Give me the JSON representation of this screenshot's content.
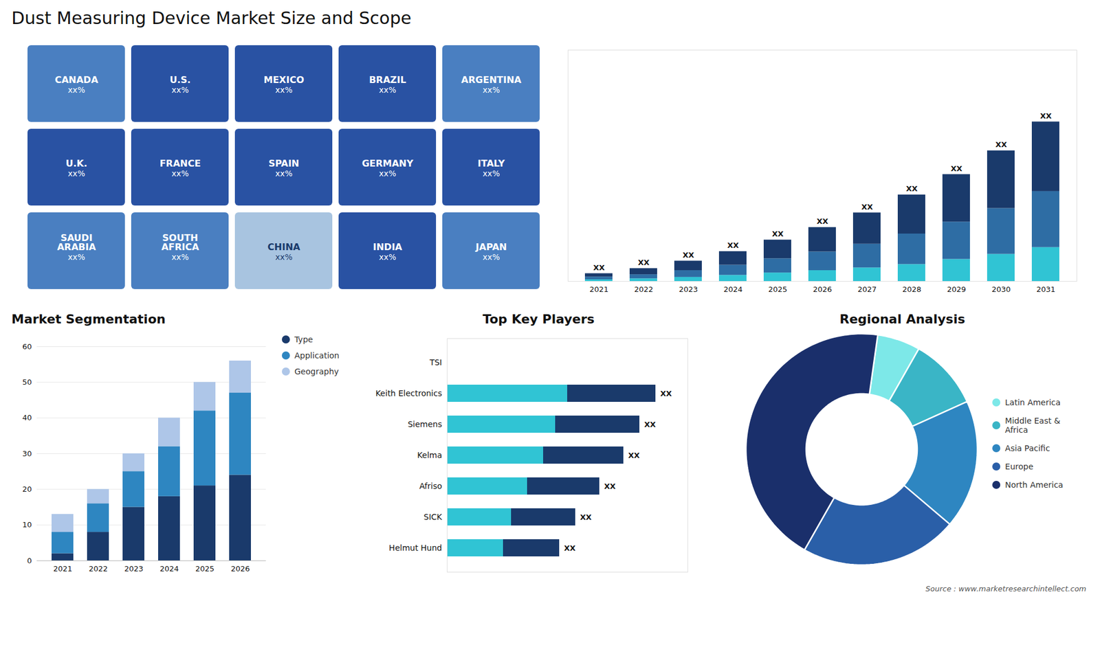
{
  "title": "Dust Measuring Device Market Size and Scope",
  "caption": "Source : www.marketresearchintellect.com",
  "chart_data": [
    {
      "type": "map",
      "annotations": [
        {
          "text": "CANADA",
          "label": "xx%",
          "color": "#4a7fc1"
        },
        {
          "text": "U.S.",
          "label": "xx%",
          "color": "#2952a3"
        },
        {
          "text": "MEXICO",
          "label": "xx%",
          "color": "#2952a3"
        },
        {
          "text": "BRAZIL",
          "label": "xx%",
          "color": "#2952a3"
        },
        {
          "text": "ARGENTINA",
          "label": "xx%",
          "color": "#4a7fc1"
        },
        {
          "text": "U.K.",
          "label": "xx%",
          "color": "#2952a3"
        },
        {
          "text": "FRANCE",
          "label": "xx%",
          "color": "#2952a3"
        },
        {
          "text": "SPAIN",
          "label": "xx%",
          "color": "#2952a3"
        },
        {
          "text": "GERMANY",
          "label": "xx%",
          "color": "#2952a3"
        },
        {
          "text": "ITALY",
          "label": "xx%",
          "color": "#2952a3"
        },
        {
          "text": "SAUDI\nARABIA",
          "label": "xx%",
          "color": "#4a7fc1"
        },
        {
          "text": "SOUTH\nAFRICA",
          "label": "xx%",
          "color": "#4a7fc1"
        },
        {
          "text": "CHINA",
          "label": "xx%",
          "color": "#a8c4e0"
        },
        {
          "text": "INDIA",
          "label": "xx%",
          "color": "#2952a3"
        },
        {
          "text": "JAPAN",
          "label": "xx%",
          "color": "#4a7fc1"
        }
      ]
    },
    {
      "type": "bar",
      "stacked": true,
      "categories": [
        2021,
        2022,
        2023,
        2024,
        2025,
        2026,
        2027,
        2028,
        2029,
        2030,
        2031
      ],
      "series": [
        {
          "color": "#30c4d4",
          "values": [
            0.5,
            0.8,
            1.2,
            1.8,
            2.5,
            3.2,
            4.0,
            5.0,
            6.5,
            8.0,
            10.0
          ]
        },
        {
          "color": "#2e6da4",
          "values": [
            0.8,
            1.2,
            2.0,
            3.0,
            4.2,
            5.5,
            7.0,
            9.0,
            11.0,
            13.5,
            16.5
          ]
        },
        {
          "color": "#1a3a6b",
          "values": [
            1.0,
            1.8,
            2.8,
            4.0,
            5.5,
            7.2,
            9.2,
            11.5,
            14.0,
            17.0,
            20.5
          ],
          "value_labels": [
            "XX",
            "XX",
            "XX",
            "XX",
            "XX",
            "XX",
            "XX",
            "XX",
            "XX",
            "XX",
            "XX"
          ]
        }
      ],
      "ylim": [
        0,
        68.15
      ],
      "tick_labels": "x"
    },
    {
      "type": "bar",
      "stacked": true,
      "title": "Market Segmentation",
      "categories": [
        2021,
        2022,
        2023,
        2024,
        2025,
        2026
      ],
      "series": [
        {
          "name": "Type",
          "color": "#1a3a6b",
          "values": [
            2,
            8,
            15,
            18,
            21,
            24
          ]
        },
        {
          "name": "Application",
          "color": "#2e86c1",
          "values": [
            6,
            8,
            10,
            14,
            21,
            23
          ]
        },
        {
          "name": "Geography",
          "color": "#aec6e8",
          "values": [
            5,
            4,
            5,
            8,
            8,
            9
          ]
        }
      ],
      "ylim": [
        0,
        60
      ],
      "yticks": [
        0,
        10,
        20,
        30,
        40,
        50,
        60
      ],
      "grid": true,
      "legend": "right"
    },
    {
      "type": "bar",
      "orientation": "horizontal",
      "title": "Top Key Players",
      "categories": [
        "TSI",
        "Keith Electronics",
        "Siemens",
        "Kelma",
        "Afriso",
        "SICK",
        "Helmut Hund"
      ],
      "series": [
        {
          "color": "#1a3a6b",
          "values": [
            0.0,
            0.52,
            0.48,
            0.44,
            0.38,
            0.32,
            0.28
          ],
          "value_labels": [
            null,
            "XX",
            "XX",
            "XX",
            "XX",
            "XX",
            "XX"
          ]
        },
        {
          "color": "#30c4d4",
          "values": [
            0.0,
            0.3,
            0.27,
            0.24,
            0.2,
            0.16,
            0.14
          ]
        }
      ],
      "xlim": [
        0,
        0.6
      ],
      "tick_labels": "y"
    },
    {
      "type": "donut",
      "title": "Regional Analysis",
      "categories": [
        "Latin America",
        "Middle East &\nAfrica",
        "Asia Pacific",
        "Europe",
        "North America"
      ],
      "values": [
        6,
        10,
        18,
        22,
        44
      ],
      "colors": [
        "#7de8e8",
        "#3ab5c6",
        "#2e86c1",
        "#2a5fa8",
        "#1a2f6b"
      ],
      "legend": "right"
    }
  ]
}
